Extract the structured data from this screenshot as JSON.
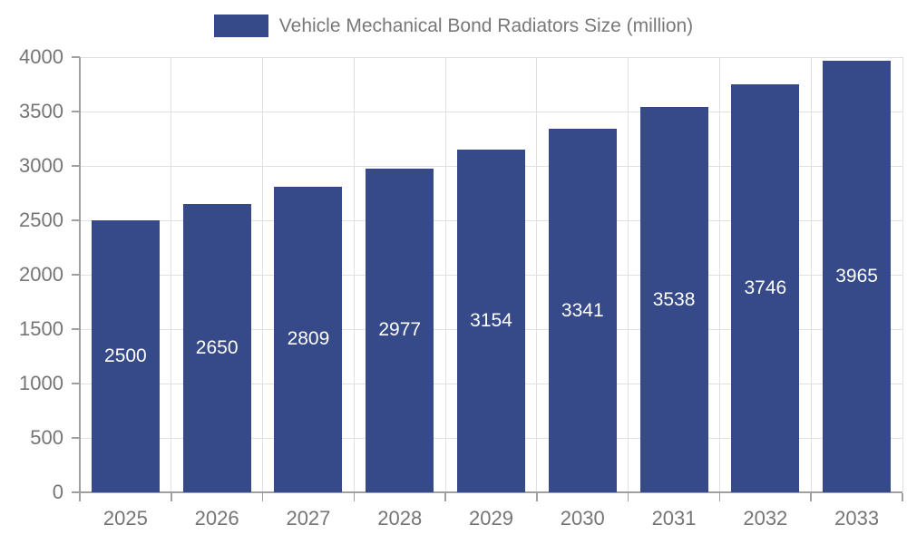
{
  "chart_data": {
    "type": "bar",
    "title": "Vehicle Mechanical Bond Radiators Size (million)",
    "legend": {
      "label": "Vehicle Mechanical Bond Radiators Size (million)",
      "position": "top"
    },
    "categories": [
      "2025",
      "2026",
      "2027",
      "2028",
      "2029",
      "2030",
      "2031",
      "2032",
      "2033"
    ],
    "values": [
      2500,
      2650,
      2809,
      2977,
      3154,
      3341,
      3538,
      3746,
      3965
    ],
    "xlabel": "",
    "ylabel": "",
    "ylim": [
      0,
      4000
    ],
    "yticks": [
      0,
      500,
      1000,
      1500,
      2000,
      2500,
      3000,
      3500,
      4000
    ],
    "grid": true,
    "value_labels_shown": true,
    "colors": {
      "bar": "#364989",
      "value_label": "#ffffff",
      "grid_line": "#e0e0e0",
      "axis_line": "#a0a0a0",
      "tick_label": "#757575",
      "legend_text": "#787878",
      "background": "#ffffff"
    }
  }
}
